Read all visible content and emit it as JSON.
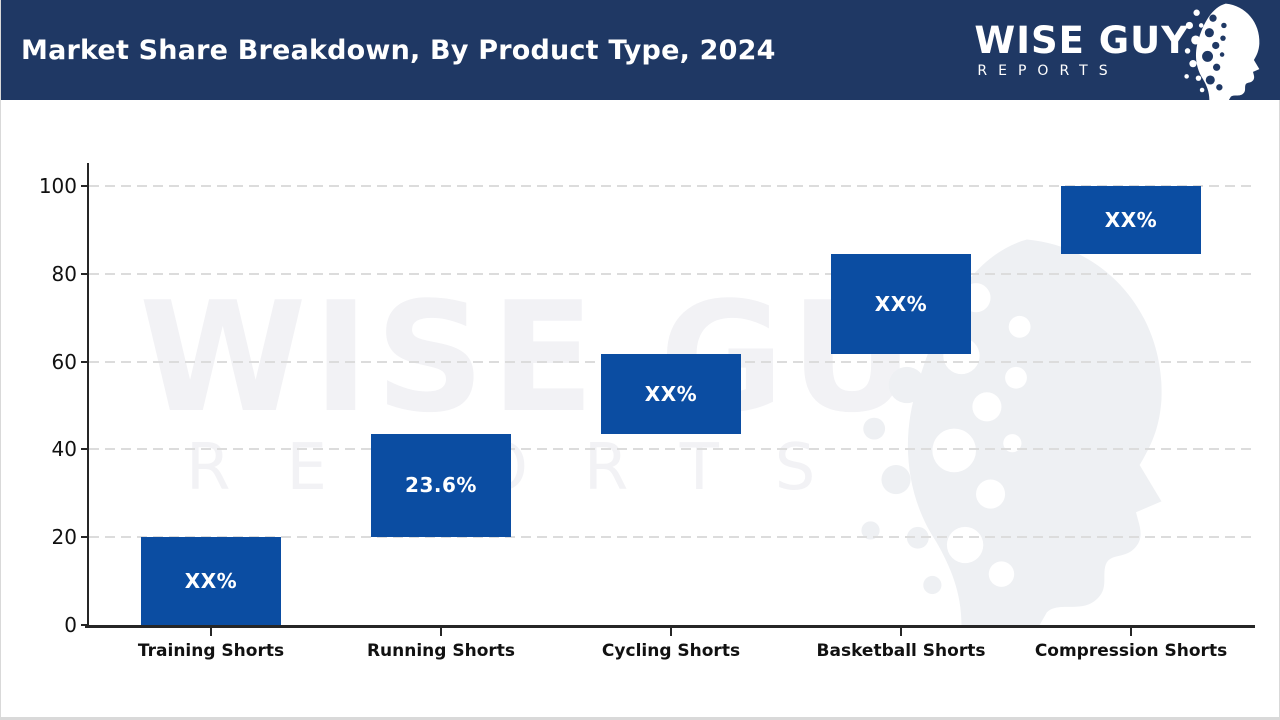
{
  "header": {
    "title": "Market Share Breakdown, By Product Type, 2024",
    "bg_color": "#1f3864",
    "logo": {
      "line1": "WISE GUY",
      "line2": "REPORTS"
    }
  },
  "watermark": {
    "line1": "WISE GUY",
    "line2": "REPORTS"
  },
  "chart_data": {
    "type": "bar",
    "subtype": "floating-waterfall",
    "title": "Market Share Breakdown, By Product Type, 2024",
    "categories": [
      "Training Shorts",
      "Running Shorts",
      "Cycling Shorts",
      "Basketball Shorts",
      "Compression Shorts"
    ],
    "segments": [
      {
        "category": "Training Shorts",
        "start": 0,
        "end": 20,
        "label": "XX%"
      },
      {
        "category": "Running Shorts",
        "start": 20,
        "end": 43.6,
        "label": "23.6%"
      },
      {
        "category": "Cycling Shorts",
        "start": 43.6,
        "end": 61.8,
        "label": "XX%"
      },
      {
        "category": "Basketball Shorts",
        "start": 61.8,
        "end": 84.6,
        "label": "XX%"
      },
      {
        "category": "Compression Shorts",
        "start": 84.6,
        "end": 100,
        "label": "XX%"
      }
    ],
    "ylim": [
      0,
      100
    ],
    "yticks": [
      0,
      20,
      40,
      60,
      80,
      100
    ],
    "xlabel": "",
    "ylabel": "",
    "grid": "dashed-horizontal",
    "legend": "none",
    "bar_color": "#0b4da2",
    "label_color": "#ffffff",
    "axis_color": "#262626",
    "gridline_color": "#dcdcdc"
  }
}
